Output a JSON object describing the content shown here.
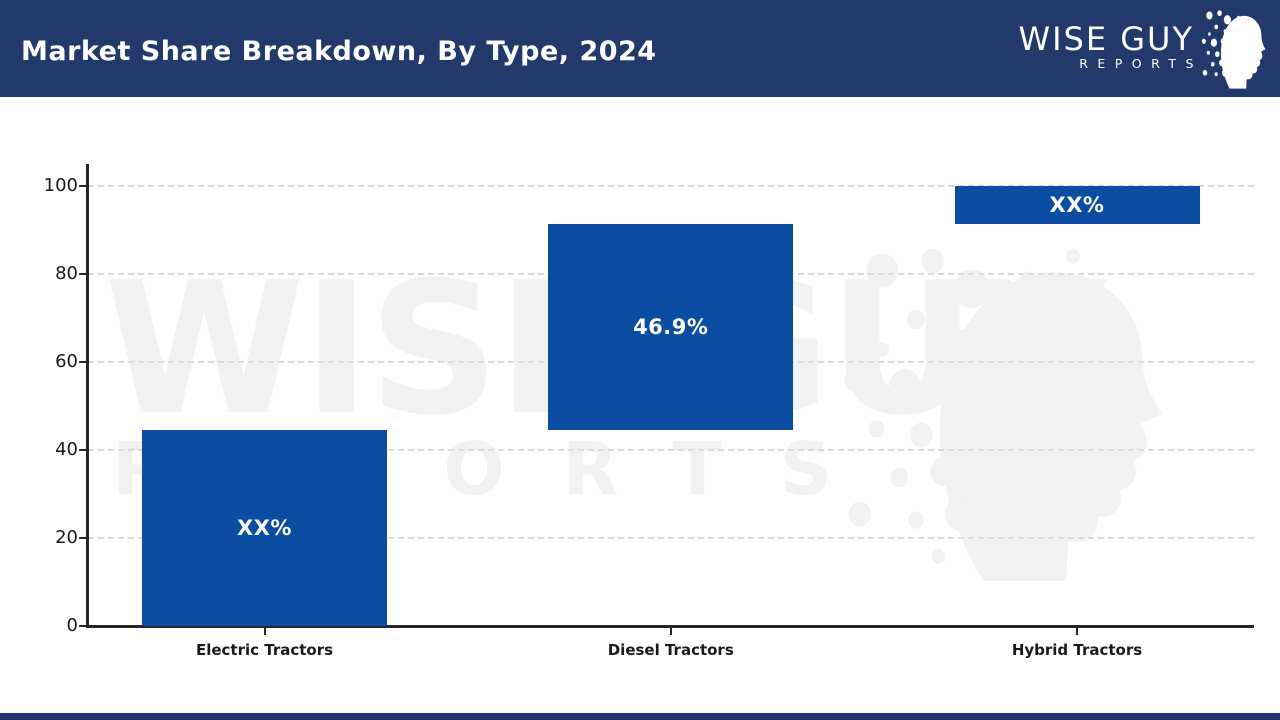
{
  "header": {
    "title": "Market Share Breakdown, By Type, 2024",
    "logo": {
      "line1": "WISE GUY",
      "line2": "REPORTS"
    }
  },
  "watermark": {
    "line1": "WISE GUY",
    "line2": "REPORTS"
  },
  "footer": {
    "note": ""
  },
  "colors": {
    "header_bg": "#213A6B",
    "footer_bg": "#213A6B",
    "bar": "#0B4DA2",
    "axis": "#262626",
    "grid": "#D9D9D9",
    "watermark": "#F1F1F3",
    "bar_label": "#FFFFFF"
  },
  "chart_data": {
    "type": "bar",
    "subtype": "waterfall",
    "title": "Market Share Breakdown, By Type, 2024",
    "xlabel": "",
    "ylabel": "",
    "categories": [
      "Electric Tractors",
      "Diesel Tractors",
      "Hybrid Tractors"
    ],
    "segments": [
      {
        "category": "Electric Tractors",
        "start": 0,
        "end": 44.5,
        "label": "XX%"
      },
      {
        "category": "Diesel Tractors",
        "start": 44.5,
        "end": 91.4,
        "label": "46.9%"
      },
      {
        "category": "Hybrid Tractors",
        "start": 91.4,
        "end": 100,
        "label": "XX%"
      }
    ],
    "yticks": [
      0,
      20,
      40,
      60,
      80,
      100
    ],
    "ylim": [
      0,
      105
    ],
    "grid": "horizontal-dashed",
    "legend": "none",
    "bar_color": "#0B4DA2",
    "value_label_color": "#FFFFFF"
  }
}
